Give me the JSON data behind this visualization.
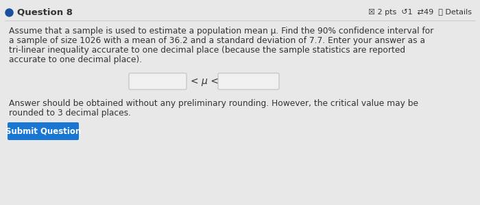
{
  "bg_color": "#e8e8e8",
  "header_text": "Question 8",
  "header_bullet_color": "#1a4fa0",
  "header_right_text": "☒ 2 pts  ↺1  ⇄49  ⓘ Details",
  "body_text_line1": "Assume that a sample is used to estimate a population mean μ. Find the 90% confidence interval for",
  "body_text_line2": "a sample of size 1026 with a mean of 36.2 and a standard deviation of 7.7. Enter your answer as a",
  "body_text_line3": "tri-linear inequality accurate to one decimal place (because the sample statistics are reported",
  "body_text_line4": "accurate to one decimal place).",
  "mu_label": "< μ <",
  "footer_text_line1": "Answer should be obtained without any preliminary rounding. However, the critical value may be",
  "footer_text_line2": "rounded to 3 decimal places.",
  "button_text": "Submit Question",
  "button_color": "#1976D2",
  "button_text_color": "#ffffff",
  "text_color": "#333333",
  "divider_color": "#cccccc",
  "box_color": "#f0f0f0",
  "box_border_color": "#c0c0c0",
  "body_fontsize": 8.8,
  "header_fontsize": 9.5,
  "footer_fontsize": 8.8,
  "button_fontsize": 8.5
}
